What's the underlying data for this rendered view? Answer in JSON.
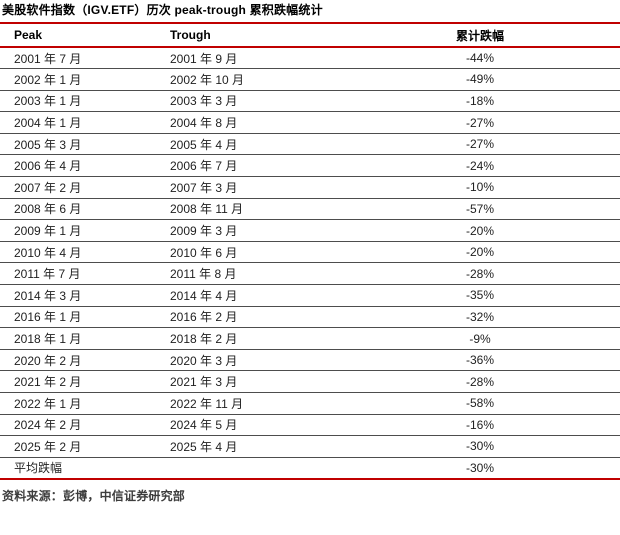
{
  "title": "美股软件指数（IGV.ETF）历次 peak-trough 累积跌幅统计",
  "table": {
    "columns": [
      {
        "label": "Peak"
      },
      {
        "label": "Trough"
      },
      {
        "label": "累计跌幅"
      }
    ],
    "rows": [
      {
        "peak": "2001 年 7 月",
        "trough": "2001 年 9 月",
        "drawdown": "-44%"
      },
      {
        "peak": "2002 年 1 月",
        "trough": "2002 年 10 月",
        "drawdown": "-49%"
      },
      {
        "peak": "2003 年 1 月",
        "trough": "2003 年 3 月",
        "drawdown": "-18%"
      },
      {
        "peak": "2004 年 1 月",
        "trough": "2004 年 8 月",
        "drawdown": "-27%"
      },
      {
        "peak": "2005 年 3 月",
        "trough": "2005 年 4 月",
        "drawdown": "-27%"
      },
      {
        "peak": "2006 年 4 月",
        "trough": "2006 年 7 月",
        "drawdown": "-24%"
      },
      {
        "peak": "2007 年 2 月",
        "trough": "2007 年 3 月",
        "drawdown": "-10%"
      },
      {
        "peak": "2008 年 6 月",
        "trough": "2008 年 11 月",
        "drawdown": "-57%"
      },
      {
        "peak": "2009 年 1 月",
        "trough": "2009 年 3 月",
        "drawdown": "-20%"
      },
      {
        "peak": "2010 年 4 月",
        "trough": "2010 年 6 月",
        "drawdown": "-20%"
      },
      {
        "peak": "2011 年 7 月",
        "trough": "2011 年 8 月",
        "drawdown": "-28%"
      },
      {
        "peak": "2014 年 3 月",
        "trough": "2014 年 4 月",
        "drawdown": "-35%"
      },
      {
        "peak": "2016 年 1 月",
        "trough": "2016 年 2 月",
        "drawdown": "-32%"
      },
      {
        "peak": "2018 年 1 月",
        "trough": "2018 年 2 月",
        "drawdown": "-9%"
      },
      {
        "peak": "2020 年 2 月",
        "trough": "2020 年 3 月",
        "drawdown": "-36%"
      },
      {
        "peak": "2021 年 2 月",
        "trough": "2021 年 3 月",
        "drawdown": "-28%"
      },
      {
        "peak": "2022 年 1 月",
        "trough": "2022 年 11 月",
        "drawdown": "-58%"
      },
      {
        "peak": "2024 年 2 月",
        "trough": "2024 年 5 月",
        "drawdown": "-16%"
      },
      {
        "peak": "2025 年 2 月",
        "trough": "2025 年 4 月",
        "drawdown": "-30%"
      }
    ],
    "summary_row": {
      "label": "平均跌幅",
      "value": "-30%"
    }
  },
  "footer": {
    "source": "资料来源：彭博，中信证券研究部"
  },
  "colors": {
    "accent_red": "#C00000",
    "row_line": "#4d4d4d",
    "text": "#1f1f1f"
  }
}
